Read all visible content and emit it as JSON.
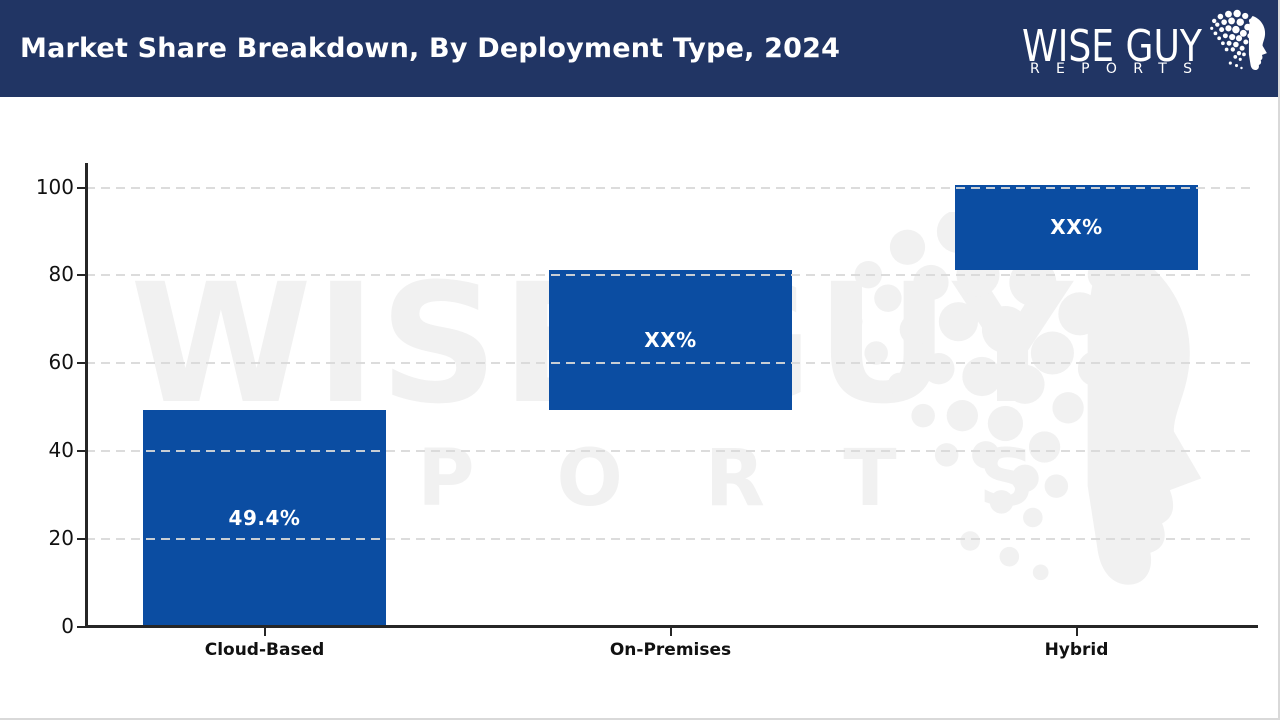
{
  "header": {
    "title": "Market Share Breakdown, By Deployment Type, 2024",
    "bg_color": "#213564",
    "logo": {
      "line1": "WISE GUY",
      "line2": "REPORTS"
    }
  },
  "watermark": {
    "line1": "WISE GUY",
    "line2": "REPORTS",
    "color": "#f1f1f1"
  },
  "chart_data": {
    "type": "bar",
    "subtype": "floating-waterfall",
    "title": "Market Share Breakdown, By Deployment Type, 2024",
    "categories": [
      "Cloud-Based",
      "On-Premises",
      "Hybrid"
    ],
    "segments": [
      {
        "category": "Cloud-Based",
        "label": "49.4%",
        "start": 0,
        "end": 49.4
      },
      {
        "category": "On-Premises",
        "label": "XX%",
        "start": 49.4,
        "end": 81.3
      },
      {
        "category": "Hybrid",
        "label": "XX%",
        "start": 81.3,
        "end": 100.5
      }
    ],
    "yticks": [
      0,
      20,
      40,
      60,
      80,
      100
    ],
    "ylim": [
      0,
      105
    ],
    "xlabel": "",
    "ylabel": "",
    "legend": "none",
    "grid": "horizontal-dashed",
    "bar_color": "#0b4da2",
    "bar_label_color": "#ffffff",
    "axis_color": "#262626",
    "grid_color": "#d9d9d9"
  }
}
